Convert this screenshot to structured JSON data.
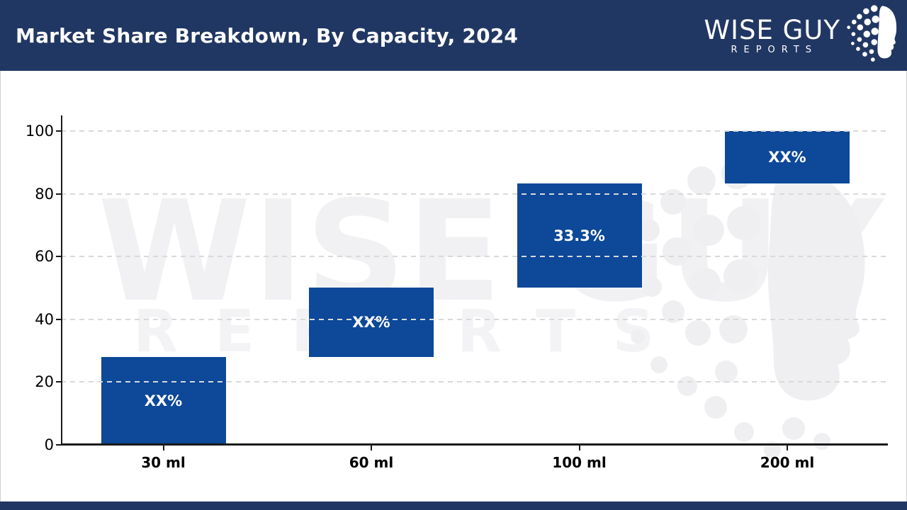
{
  "header": {
    "title": "Market Share Breakdown, By Capacity, 2024",
    "logo": {
      "wordmark": "WISE GUY",
      "sub": "REPORTS"
    }
  },
  "watermark": {
    "wordmark": "WISE GUY",
    "sub": "REPORTS"
  },
  "colors": {
    "header_bg": "#213763",
    "footer_bg": "#213763",
    "bar": "#0d4899",
    "bar_label": "#ffffff",
    "grid": "#d9d9d9",
    "axis": "#1a1a1a",
    "watermark": "#f1f1f4"
  },
  "chart_data": {
    "type": "bar",
    "subtype": "waterfall",
    "title": "Market Share Breakdown, By Capacity, 2024",
    "categories": [
      "30 ml",
      "60 ml",
      "100 ml",
      "200 ml"
    ],
    "segments": [
      {
        "category": "30 ml",
        "start": 0,
        "end": 27.8,
        "label": "XX%"
      },
      {
        "category": "60 ml",
        "start": 27.8,
        "end": 50,
        "label": "XX%"
      },
      {
        "category": "100 ml",
        "start": 50,
        "end": 83.3,
        "label": "33.3%"
      },
      {
        "category": "200 ml",
        "start": 83.3,
        "end": 100,
        "label": "XX%"
      }
    ],
    "yticks": [
      0,
      20,
      40,
      60,
      80,
      100
    ],
    "ylim": [
      0,
      105
    ],
    "xlabel": "",
    "ylabel": "",
    "grid": "horizontal-dashed",
    "legend": "none",
    "bar_color": "#0d4899",
    "label_color": "#ffffff"
  }
}
